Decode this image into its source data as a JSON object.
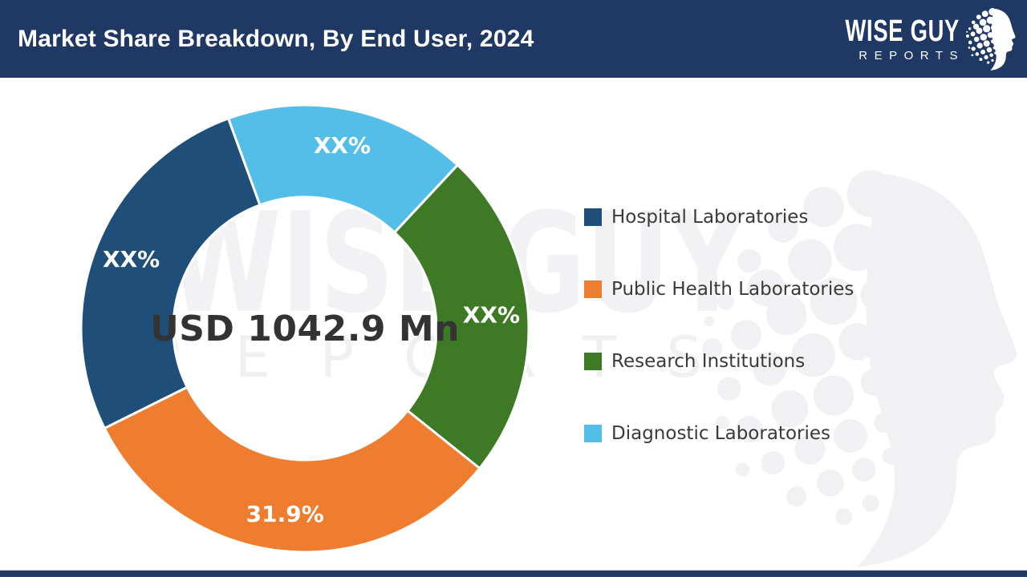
{
  "header": {
    "title": "Market Share Breakdown, By End User, 2024",
    "logo": {
      "brand": "WISE GUY",
      "sub": "REPORTS"
    }
  },
  "watermark": {
    "line1": "WISE GUY",
    "line2": "REPORTS"
  },
  "chart_data": {
    "type": "pie",
    "subtype": "donut",
    "title": "Market Share Breakdown, By End User, 2024",
    "center_label": "USD 1042.9 Mn",
    "start_angle_deg": 110,
    "direction": "clockwise",
    "legend_position": "right",
    "slices": [
      {
        "name": "Diagnostic Laboratories",
        "label": "XX%",
        "value_pct_est": 17.5,
        "color": "#53bfe8"
      },
      {
        "name": "Research Institutions",
        "label": "XX%",
        "value_pct_est": 23.8,
        "color": "#3e7a25"
      },
      {
        "name": "Public Health Laboratories",
        "label": "31.9%",
        "value_pct_est": 31.9,
        "color": "#ee7d2f"
      },
      {
        "name": "Hospital Laboratories",
        "label": "XX%",
        "value_pct_est": 26.8,
        "color": "#1f4e79"
      }
    ],
    "legend_items": [
      {
        "label": "Hospital Laboratories",
        "color": "#1f4e79"
      },
      {
        "label": "Public Health Laboratories",
        "color": "#ee7d2f"
      },
      {
        "label": "Research Institutions",
        "color": "#3e7a25"
      },
      {
        "label": "Diagnostic Laboratories",
        "color": "#53bfe8"
      }
    ]
  },
  "colors": {
    "header_bg": "#1f3864",
    "footer_bg": "#1f3864",
    "slice_gap": "#ffffff",
    "center_text": "#333333",
    "legend_text": "#3a3a3a",
    "watermark": "#f2f2f4"
  }
}
